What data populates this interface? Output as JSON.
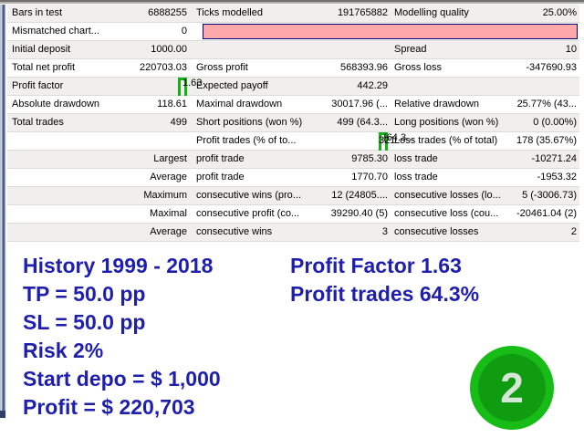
{
  "report_table": {
    "rows": [
      {
        "c1l": "Bars in test",
        "c1v": "6888255",
        "c2l": "Ticks modelled",
        "c2v": "191765882",
        "c3l": "Modelling quality",
        "c3v": "25.00%"
      },
      {
        "c1l": "Mismatched chart...",
        "c1v": "0",
        "c2l": "",
        "c2v": "",
        "c3l": "",
        "c3v": ""
      },
      {
        "c1l": "Initial deposit",
        "c1v": "1000.00",
        "c2l": "",
        "c2v": "",
        "c3l": "Spread",
        "c3v": "10"
      },
      {
        "c1l": "Total net profit",
        "c1v": "220703.03",
        "c2l": "Gross profit",
        "c2v": "568393.96",
        "c3l": "Gross loss",
        "c3v": "-347690.93"
      },
      {
        "c1l": "Profit factor",
        "c1v": "1.63",
        "c2l": "Expected payoff",
        "c2v": "442.29",
        "c3l": "",
        "c3v": ""
      },
      {
        "c1l": "Absolute drawdown",
        "c1v": "118.61",
        "c2l": "Maximal drawdown",
        "c2v": "30017.96 (...",
        "c3l": "Relative drawdown",
        "c3v": "25.77% (43..."
      },
      {
        "c1l": "Total trades",
        "c1v": "499",
        "c2l": "Short positions (won %)",
        "c2v": "499 (64.3...",
        "c3l": "Long positions (won %)",
        "c3v": "0 (0.00%)"
      },
      {
        "c1l": "",
        "c1v": "",
        "c2l": "Profit trades (% of to...",
        "c2v_count": "321",
        "c2v_pct": "(64.3...",
        "c3l": "Loss trades (% of total)",
        "c3v": "178 (35.67%)"
      },
      {
        "c1l": "",
        "c1v": "Largest",
        "c2l": "profit trade",
        "c2v": "9785.30",
        "c3l": "loss trade",
        "c3v": "-10271.24"
      },
      {
        "c1l": "",
        "c1v": "Average",
        "c2l": "profit trade",
        "c2v": "1770.70",
        "c3l": "loss trade",
        "c3v": "-1953.32"
      },
      {
        "c1l": "",
        "c1v": "Maximum",
        "c2l": "consecutive wins (pro...",
        "c2v": "12 (24805....",
        "c3l": "consecutive losses (lo...",
        "c3v": "5 (-3006.73)"
      },
      {
        "c1l": "",
        "c1v": "Maximal",
        "c2l": "consecutive profit (co...",
        "c2v": "39290.40 (5)",
        "c3l": "consecutive loss (cou...",
        "c3v": "-20461.04 (2)"
      },
      {
        "c1l": "",
        "c1v": "Average",
        "c2l": "consecutive wins",
        "c2v": "3",
        "c3l": "consecutive losses",
        "c3v": "2"
      }
    ]
  },
  "highlights": {
    "box_color": "#12b212",
    "error_bar_color": "#ffa8ab"
  },
  "annotations": {
    "text_color": "#1f1fae",
    "left": [
      "History 1999 - 2018",
      "TP = 50.0 pp",
      "SL = 50.0 pp",
      "Risk 2%",
      "Start depo = $ 1,000",
      "Profit = $ 220,703"
    ],
    "right": [
      "Profit Factor 1.63",
      "Profit trades 64.3%"
    ]
  },
  "badge": {
    "number": "2",
    "outer_color": "#17bc17",
    "inner_color": "#109c10"
  }
}
